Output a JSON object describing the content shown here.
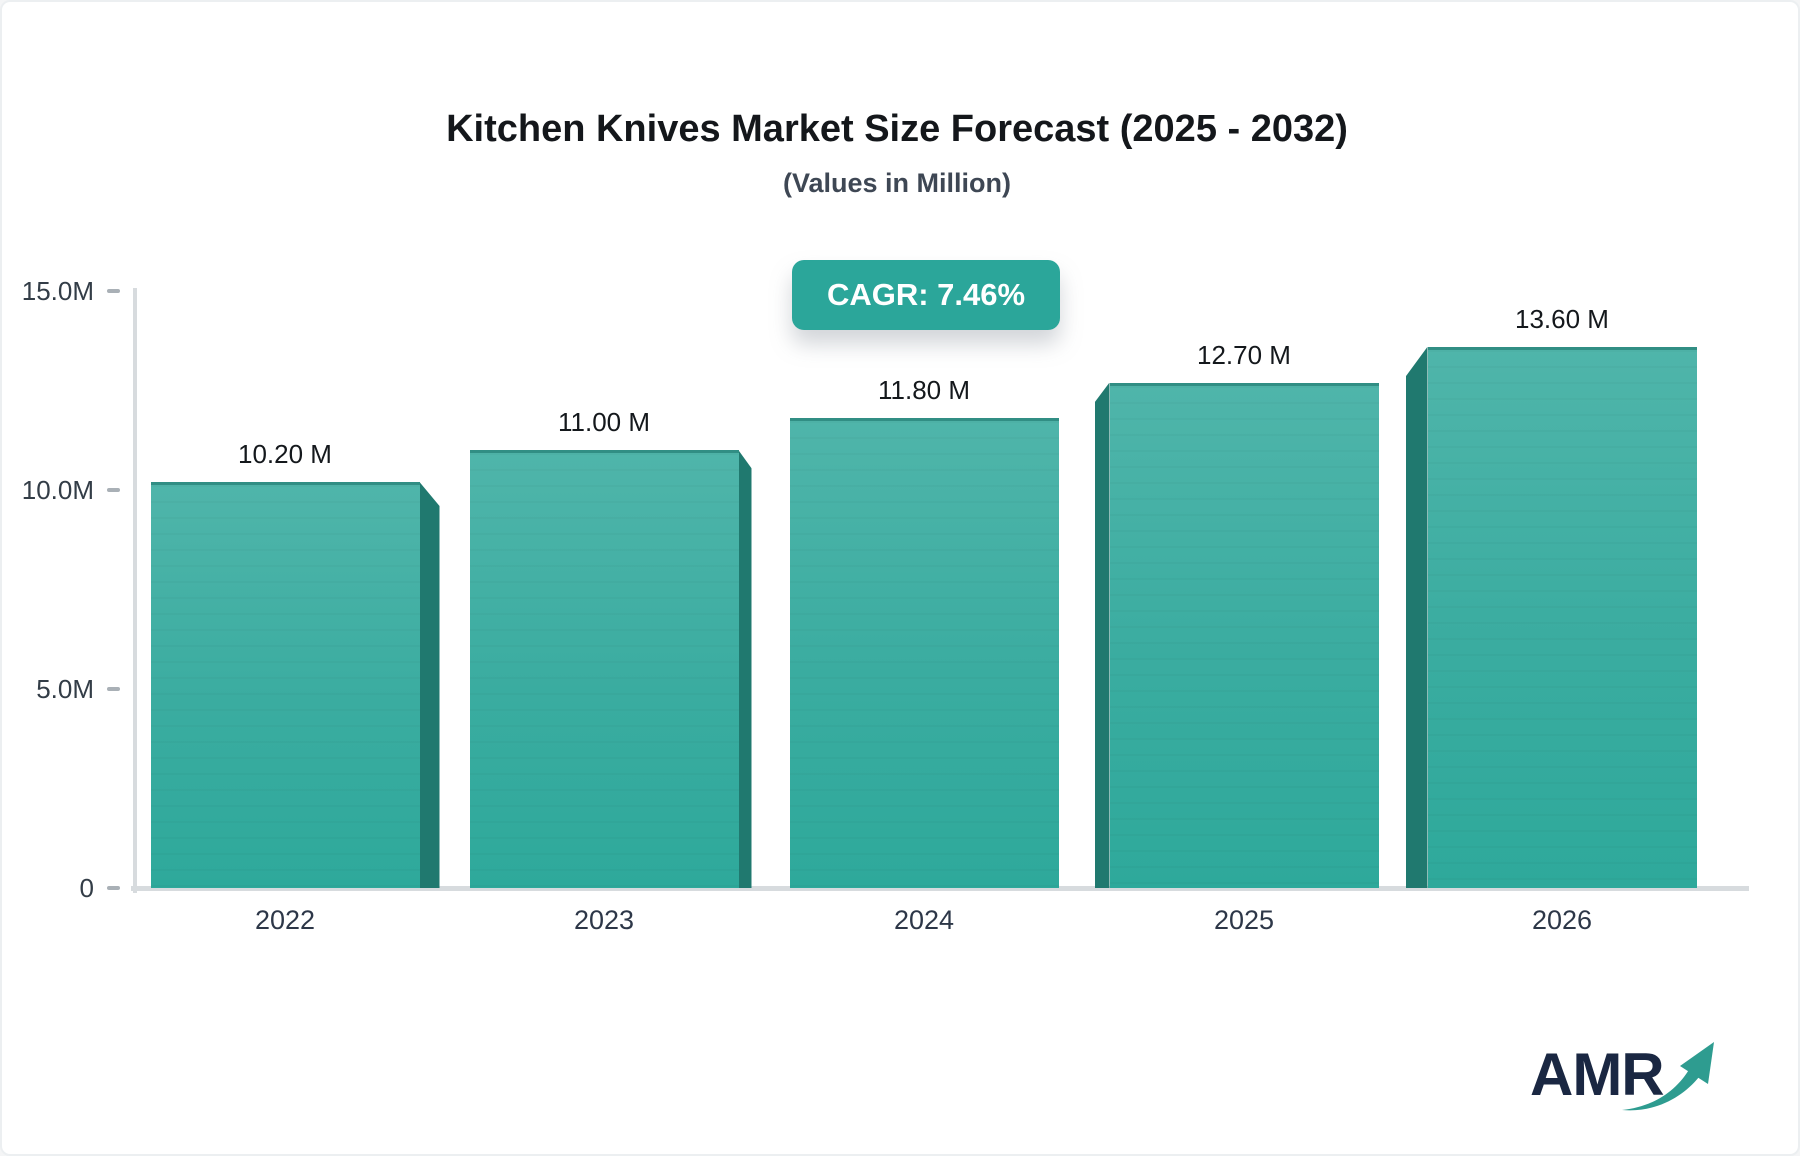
{
  "title": "Kitchen Knives Market Size Forecast (2025 - 2032)",
  "subtitle": "(Values in Million)",
  "badge": {
    "label": "CAGR: 7.46%"
  },
  "logo": {
    "text": "AMR",
    "icon": "growth-arrow-icon"
  },
  "colors": {
    "bar_face_top": "#4FB5AA",
    "bar_face_bottom": "#2EA99B",
    "bar_side_dark": "#20796F",
    "badge_bg": "#2BA69A",
    "axis_gray": "#D7DBDE",
    "logo_navy": "#1A2742",
    "logo_arrow_teal": "#2E9C90"
  },
  "chart_data": {
    "type": "bar",
    "title": "Kitchen Knives Market Size Forecast (2025 - 2032)",
    "subtitle": "(Values in Million)",
    "annotation": "CAGR: 7.46%",
    "categories": [
      "2022",
      "2023",
      "2024",
      "2025",
      "2026"
    ],
    "values": [
      10.2,
      11.0,
      11.8,
      12.7,
      13.6
    ],
    "value_labels": [
      "10.20 M",
      "11.00 M",
      "11.80 M",
      "12.70 M",
      "13.60 M"
    ],
    "unit": "Million",
    "ylim": [
      0,
      15
    ],
    "y_ticks": [
      {
        "value": 15,
        "label": "15.0M"
      },
      {
        "value": 10,
        "label": "10.0M"
      },
      {
        "value": 5,
        "label": "5.0M"
      },
      {
        "value": 0,
        "label": "0"
      }
    ],
    "grid": false,
    "legend": false
  }
}
